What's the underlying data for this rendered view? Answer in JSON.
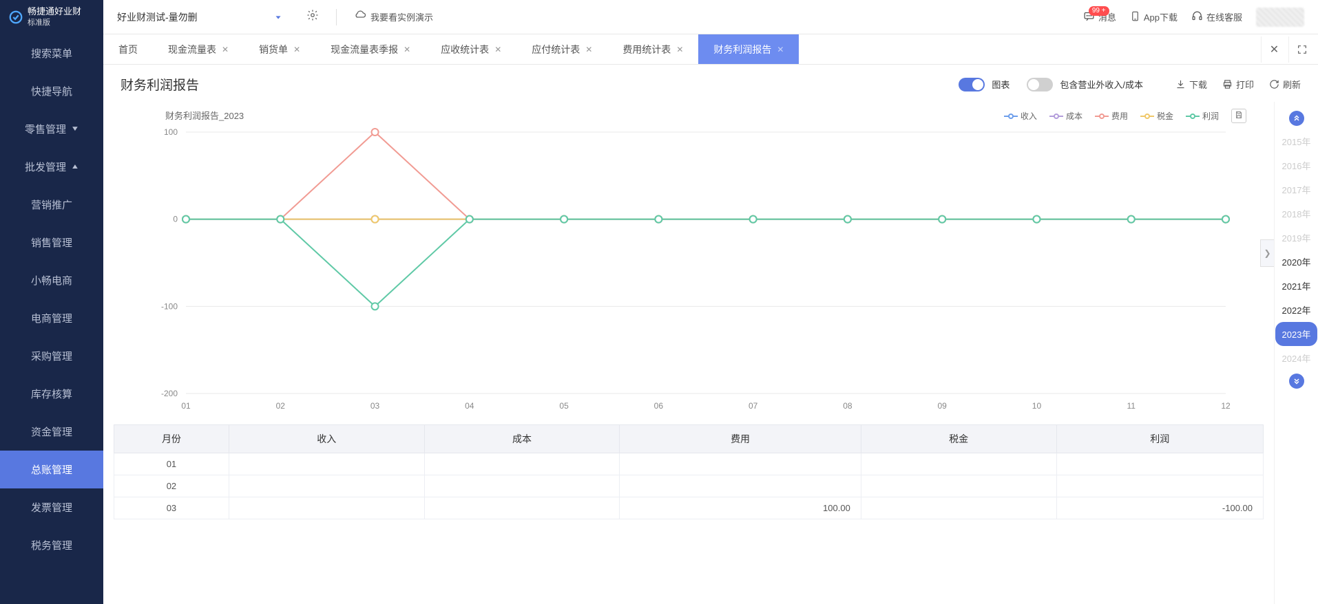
{
  "brand": {
    "name": "畅捷通好业财",
    "edition": "标准版"
  },
  "workspace": {
    "name": "好业财测试-量勿删",
    "gear_title": "设置",
    "demo_link": "我要看实例演示"
  },
  "header_actions": {
    "messages": {
      "label": "消息",
      "badge": "99 +"
    },
    "app_download": "App下载",
    "support": "在线客服"
  },
  "sidebar": {
    "items": [
      {
        "label": "搜索菜单",
        "type": "item"
      },
      {
        "label": "快捷导航",
        "type": "item"
      },
      {
        "label": "零售管理",
        "type": "group",
        "expanded": false
      },
      {
        "label": "批发管理",
        "type": "group",
        "expanded": true
      },
      {
        "label": "营销推广",
        "type": "sub"
      },
      {
        "label": "销售管理",
        "type": "sub"
      },
      {
        "label": "小畅电商",
        "type": "sub"
      },
      {
        "label": "电商管理",
        "type": "sub"
      },
      {
        "label": "采购管理",
        "type": "sub"
      },
      {
        "label": "库存核算",
        "type": "sub"
      },
      {
        "label": "资金管理",
        "type": "sub"
      },
      {
        "label": "总账管理",
        "type": "sub",
        "active": true
      },
      {
        "label": "发票管理",
        "type": "sub"
      },
      {
        "label": "税务管理",
        "type": "sub"
      }
    ]
  },
  "tabs": [
    {
      "label": "首页",
      "closable": false
    },
    {
      "label": "现金流量表",
      "closable": true
    },
    {
      "label": "销货单",
      "closable": true
    },
    {
      "label": "现金流量表季报",
      "closable": true
    },
    {
      "label": "应收统计表",
      "closable": true
    },
    {
      "label": "应付统计表",
      "closable": true
    },
    {
      "label": "费用统计表",
      "closable": true
    },
    {
      "label": "财务利润报告",
      "closable": true,
      "active": true
    }
  ],
  "page": {
    "title": "财务利润报告",
    "toggle_chart": {
      "label": "图表",
      "on": true
    },
    "toggle_extra": {
      "label": "包含营业外收入/成本",
      "on": false
    },
    "actions": {
      "download": "下载",
      "print": "打印",
      "refresh": "刷新"
    }
  },
  "chart": {
    "type": "line",
    "title": "财务利润报告_2023",
    "background_color": "#ffffff",
    "grid_color": "#e8e8e8",
    "x_categories": [
      "01",
      "02",
      "03",
      "04",
      "05",
      "06",
      "07",
      "08",
      "09",
      "10",
      "11",
      "12"
    ],
    "ylim": [
      -200,
      100
    ],
    "yticks": [
      -200,
      -100,
      0,
      100
    ],
    "label_fontsize": 12,
    "axis_color": "#888888",
    "marker_style": "hollow-circle",
    "marker_size": 5,
    "line_width": 2,
    "series": [
      {
        "name": "收入",
        "color": "#6d9eeb",
        "values": [
          0,
          0,
          0,
          0,
          0,
          0,
          0,
          0,
          0,
          0,
          0,
          0
        ]
      },
      {
        "name": "成本",
        "color": "#b39ddb",
        "values": [
          0,
          0,
          0,
          0,
          0,
          0,
          0,
          0,
          0,
          0,
          0,
          0
        ]
      },
      {
        "name": "费用",
        "color": "#f19b93",
        "values": [
          0,
          0,
          100,
          0,
          0,
          0,
          0,
          0,
          0,
          0,
          0,
          0
        ]
      },
      {
        "name": "税金",
        "color": "#f0c869",
        "values": [
          0,
          0,
          0,
          0,
          0,
          0,
          0,
          0,
          0,
          0,
          0,
          0
        ]
      },
      {
        "name": "利润",
        "color": "#5fc9a6",
        "values": [
          0,
          0,
          -100,
          0,
          0,
          0,
          0,
          0,
          0,
          0,
          0,
          0
        ]
      }
    ]
  },
  "table": {
    "columns": [
      "月份",
      "收入",
      "成本",
      "费用",
      "税金",
      "利润"
    ],
    "rows": [
      {
        "month": "01",
        "income": "",
        "cost": "",
        "expense": "",
        "tax": "",
        "profit": ""
      },
      {
        "month": "02",
        "income": "",
        "cost": "",
        "expense": "",
        "tax": "",
        "profit": ""
      },
      {
        "month": "03",
        "income": "",
        "cost": "",
        "expense": "100.00",
        "tax": "",
        "profit": "-100.00"
      }
    ],
    "col_widths_pct": [
      10,
      17,
      17,
      21,
      17,
      18
    ]
  },
  "year_panel": {
    "years": [
      {
        "label": "2015年",
        "state": "disabled"
      },
      {
        "label": "2016年",
        "state": "disabled"
      },
      {
        "label": "2017年",
        "state": "disabled"
      },
      {
        "label": "2018年",
        "state": "disabled"
      },
      {
        "label": "2019年",
        "state": "disabled"
      },
      {
        "label": "2020年",
        "state": "enabled"
      },
      {
        "label": "2021年",
        "state": "enabled"
      },
      {
        "label": "2022年",
        "state": "enabled"
      },
      {
        "label": "2023年",
        "state": "active"
      },
      {
        "label": "2024年",
        "state": "disabled"
      }
    ]
  }
}
